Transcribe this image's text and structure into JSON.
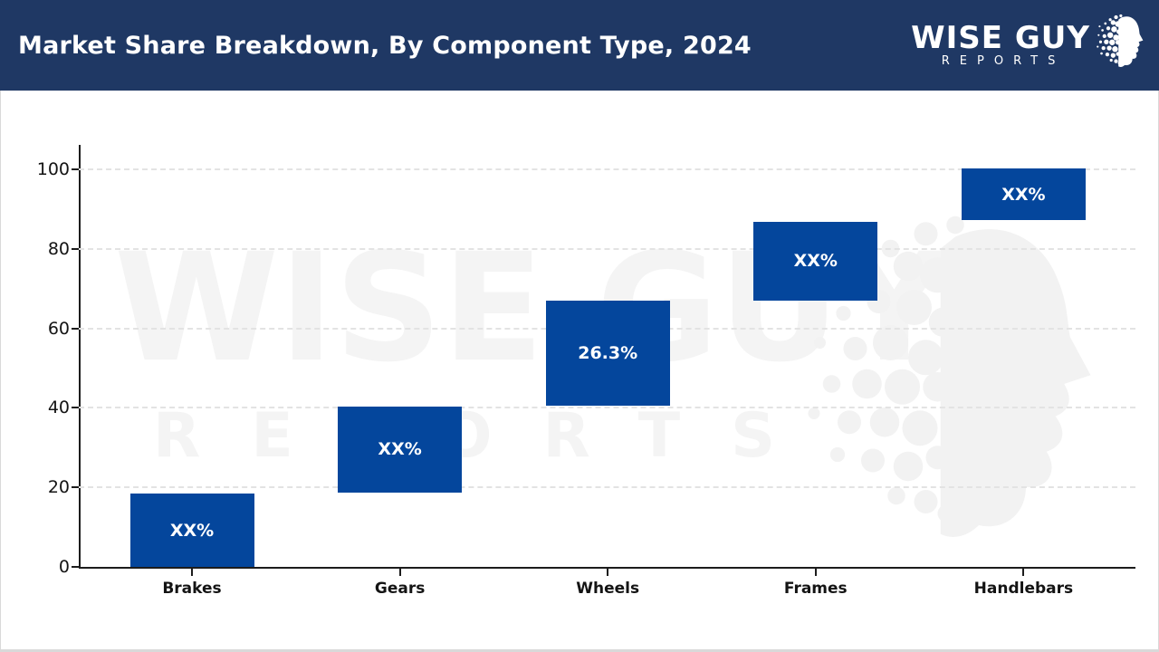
{
  "header": {
    "logo": {
      "line1": "WISE GUY",
      "line2": "REPORTS"
    }
  },
  "watermark": {
    "line1": "WISE GUY",
    "line2": "REPORTS"
  },
  "colors": {
    "header_bg": "#1f3864",
    "bar": "#04469c",
    "bar_label": "#ffffff",
    "grid": "#e3e3e3",
    "axis": "#1c1c1c",
    "watermark": "#f2f2f2",
    "title_text": "#ffffff"
  },
  "chart_data": {
    "type": "bar",
    "subtype": "floating-waterfall",
    "title": "Market Share Breakdown, By Component Type, 2024",
    "categories": [
      "Brakes",
      "Gears",
      "Wheels",
      "Frames",
      "Handlebars"
    ],
    "bars": [
      {
        "category": "Brakes",
        "start": 0,
        "end": 18.4,
        "label": "XX%"
      },
      {
        "category": "Gears",
        "start": 18.6,
        "end": 40.4,
        "label": "XX%"
      },
      {
        "category": "Wheels",
        "start": 40.6,
        "end": 66.9,
        "label": "26.3%"
      },
      {
        "category": "Frames",
        "start": 67.0,
        "end": 86.8,
        "label": "XX%"
      },
      {
        "category": "Handlebars",
        "start": 87.2,
        "end": 100.2,
        "label": "XX%"
      }
    ],
    "xlabel": "",
    "ylabel": "",
    "ylim": [
      0,
      106
    ],
    "yticks": [
      0,
      20,
      40,
      60,
      80,
      100
    ],
    "grid": {
      "show": true,
      "style": "dashed",
      "position": "horizontal"
    },
    "legend": "none"
  }
}
